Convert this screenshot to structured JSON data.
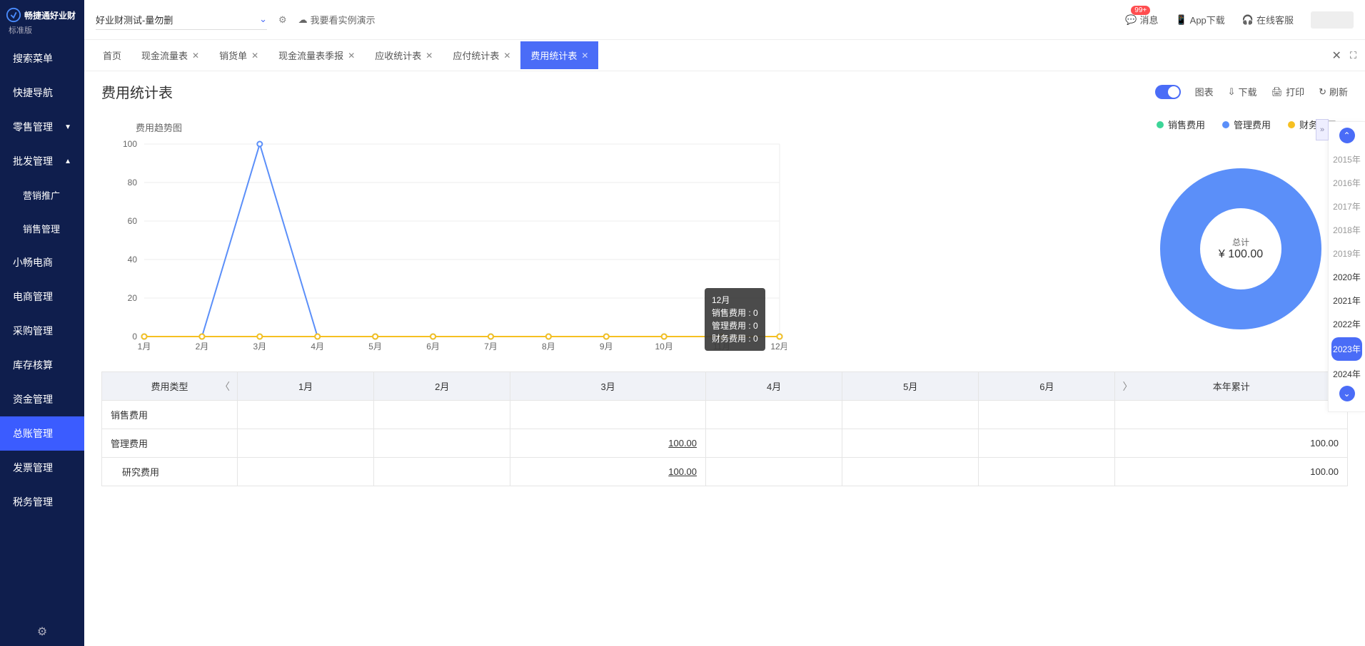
{
  "brand": {
    "name": "畅捷通好业财",
    "edition": "标准版"
  },
  "sidebar": {
    "items": [
      {
        "label": "搜索菜单",
        "arrow": ""
      },
      {
        "label": "快捷导航",
        "arrow": ""
      },
      {
        "label": "零售管理",
        "arrow": "▼"
      },
      {
        "label": "批发管理",
        "arrow": "▲"
      },
      {
        "label": "营销推广",
        "sub": true
      },
      {
        "label": "销售管理",
        "sub": true
      },
      {
        "label": "小畅电商",
        "arrow": ""
      },
      {
        "label": "电商管理",
        "arrow": ""
      },
      {
        "label": "采购管理",
        "arrow": ""
      },
      {
        "label": "库存核算",
        "arrow": ""
      },
      {
        "label": "资金管理",
        "arrow": ""
      },
      {
        "label": "总账管理",
        "arrow": "",
        "active": true
      },
      {
        "label": "发票管理",
        "arrow": ""
      },
      {
        "label": "税务管理",
        "arrow": ""
      }
    ]
  },
  "topbar": {
    "org": "好业财测试-量勿删",
    "demo": "我要看实例演示",
    "actions": {
      "message": "消息",
      "badge": "99+",
      "app": "App下载",
      "service": "在线客服"
    }
  },
  "tabs": [
    {
      "label": "首页",
      "closable": false
    },
    {
      "label": "现金流量表",
      "closable": true
    },
    {
      "label": "销货单",
      "closable": true
    },
    {
      "label": "现金流量表季报",
      "closable": true
    },
    {
      "label": "应收统计表",
      "closable": true
    },
    {
      "label": "应付统计表",
      "closable": true
    },
    {
      "label": "费用统计表",
      "closable": true,
      "active": true
    }
  ],
  "page": {
    "title": "费用统计表",
    "actions": {
      "chart": "图表",
      "download": "下载",
      "print": "打印",
      "refresh": "刷新"
    }
  },
  "legend": [
    {
      "label": "销售费用",
      "color": "#3dd598"
    },
    {
      "label": "管理费用",
      "color": "#5b8ff9"
    },
    {
      "label": "财务费用",
      "color": "#f6c022"
    }
  ],
  "lineChart": {
    "title": "费用趋势图",
    "xLabels": [
      "1月",
      "2月",
      "3月",
      "4月",
      "5月",
      "6月",
      "7月",
      "8月",
      "9月",
      "10月",
      "11月",
      "12月"
    ],
    "yTicks": [
      0,
      20,
      40,
      60,
      80,
      100
    ],
    "yMax": 100,
    "series": [
      {
        "name": "销售费用",
        "color": "#3dd598",
        "values": [
          0,
          0,
          0,
          0,
          0,
          0,
          0,
          0,
          0,
          0,
          0,
          0
        ]
      },
      {
        "name": "管理费用",
        "color": "#5b8ff9",
        "values": [
          0,
          0,
          100,
          0,
          0,
          0,
          0,
          0,
          0,
          0,
          0,
          0
        ]
      },
      {
        "name": "财务费用",
        "color": "#f6c022",
        "values": [
          0,
          0,
          0,
          0,
          0,
          0,
          0,
          0,
          0,
          0,
          0,
          0
        ]
      }
    ],
    "tooltip": {
      "title": "12月",
      "lines": [
        "销售费用 : 0",
        "管理费用 : 0",
        "财务费用 : 0"
      ]
    },
    "gridColor": "#eeeeee",
    "axisColor": "#cccccc"
  },
  "donut": {
    "centerLabel": "总计",
    "centerValue": "¥ 100.00",
    "color": "#5b8ff9"
  },
  "yearRail": {
    "years": [
      "2015年",
      "2016年",
      "2017年",
      "2018年",
      "2019年",
      "2020年",
      "2021年",
      "2022年",
      "2023年",
      "2024年"
    ],
    "activeIndex": 8,
    "recentStart": 5
  },
  "table": {
    "typeHeader": "费用类型",
    "totalHeader": "本年累计",
    "monthHeaders": [
      "1月",
      "2月",
      "3月",
      "4月",
      "5月",
      "6月"
    ],
    "rows": [
      {
        "type": "销售费用",
        "values": [
          "",
          "",
          "",
          "",
          "",
          ""
        ],
        "total": ""
      },
      {
        "type": "管理费用",
        "values": [
          "",
          "",
          "100.00",
          "",
          "",
          ""
        ],
        "total": "100.00"
      },
      {
        "type": "研究费用",
        "values": [
          "",
          "",
          "100.00",
          "",
          "",
          ""
        ],
        "total": "100.00",
        "indent": true
      }
    ]
  }
}
